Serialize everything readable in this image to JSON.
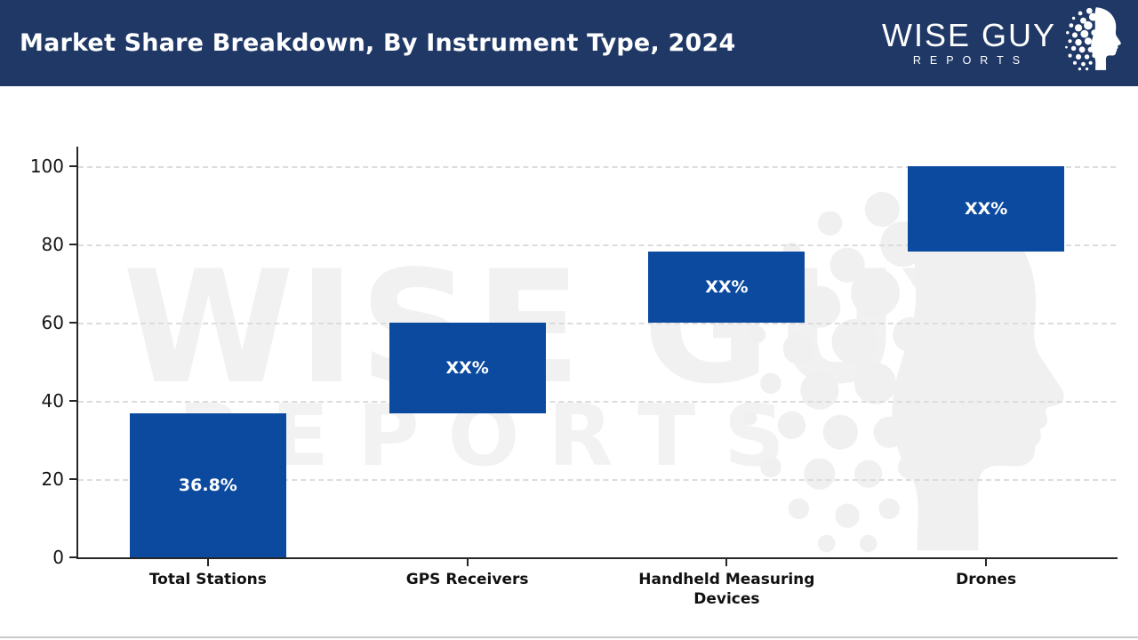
{
  "header": {
    "title": "Market Share Breakdown, By Instrument Type, 2024",
    "bg_color": "#1f3866",
    "brand": {
      "name": "WISE GUY",
      "sub": "REPORTS"
    }
  },
  "watermark": {
    "line1": "WISE GUY",
    "line2": "REPORTS"
  },
  "chart_data": {
    "type": "bar",
    "subtype": "waterfall",
    "title": "Market Share Breakdown, By Instrument Type, 2024",
    "categories": [
      "Total Stations",
      "GPS Receivers",
      "Handheld Measuring Devices",
      "Drones"
    ],
    "series": [
      {
        "name": "Market Share",
        "segments": [
          {
            "category": "Total Stations",
            "start": 0,
            "end": 36.8,
            "label": "36.8%"
          },
          {
            "category": "GPS Receivers",
            "start": 36.8,
            "end": 60,
            "label": "XX%"
          },
          {
            "category": "Handheld Measuring Devices",
            "start": 60,
            "end": 78.2,
            "label": "XX%"
          },
          {
            "category": "Drones",
            "start": 78.2,
            "end": 100,
            "label": "XX%"
          }
        ]
      }
    ],
    "xlabel": "",
    "ylabel": "",
    "yticks": [
      0,
      20,
      40,
      60,
      80,
      100
    ],
    "ylim": [
      0,
      105
    ],
    "grid": "horizontal-dashed",
    "grid_color": "#dcdcdc",
    "axis_color": "#262626",
    "bar_color": "#0b4a9f",
    "bar_label_color": "#ffffff",
    "legend": "none"
  }
}
